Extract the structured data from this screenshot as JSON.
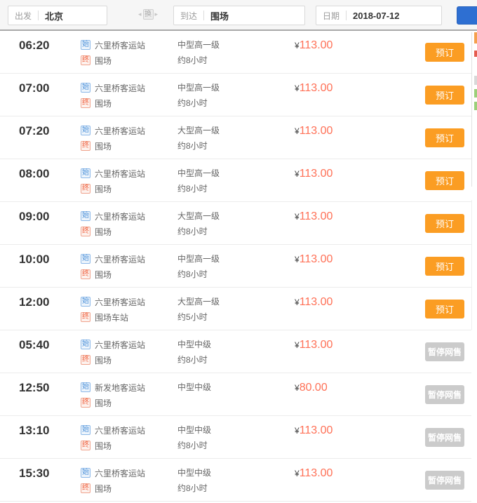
{
  "search_bar": {
    "from_label": "出发",
    "from_value": "北京",
    "swap_label": "换",
    "to_label": "到达",
    "to_value": "围场",
    "date_label": "日期",
    "date_value": "2018-07-12"
  },
  "badges": {
    "start": "始",
    "end": "终"
  },
  "buttons": {
    "book": "预订",
    "suspended": "暂停网售"
  },
  "currency": "¥",
  "colors": {
    "search_button_blue": "#2e6fd2",
    "book_button_orange": "#fb9d23",
    "suspended_button_gray": "#cbcbcb",
    "price_coral": "#ff7056",
    "start_badge_blue": "#4a90d9",
    "end_badge_orange": "#f0603d"
  },
  "rows": [
    {
      "time": "06:20",
      "from": "六里桥客运站",
      "to": "围场",
      "type": "中型高一级",
      "duration": "约8小时",
      "price": "113.00",
      "bookable": true
    },
    {
      "time": "07:00",
      "from": "六里桥客运站",
      "to": "围场",
      "type": "中型高一级",
      "duration": "约8小时",
      "price": "113.00",
      "bookable": true
    },
    {
      "time": "07:20",
      "from": "六里桥客运站",
      "to": "围场",
      "type": "大型高一级",
      "duration": "约8小时",
      "price": "113.00",
      "bookable": true
    },
    {
      "time": "08:00",
      "from": "六里桥客运站",
      "to": "围场",
      "type": "中型高一级",
      "duration": "约8小时",
      "price": "113.00",
      "bookable": true
    },
    {
      "time": "09:00",
      "from": "六里桥客运站",
      "to": "围场",
      "type": "大型高一级",
      "duration": "约8小时",
      "price": "113.00",
      "bookable": true
    },
    {
      "time": "10:00",
      "from": "六里桥客运站",
      "to": "围场",
      "type": "中型高一级",
      "duration": "约8小时",
      "price": "113.00",
      "bookable": true
    },
    {
      "time": "12:00",
      "from": "六里桥客运站",
      "to": "围场车站",
      "type": "大型高一级",
      "duration": "约5小时",
      "price": "113.00",
      "bookable": true
    },
    {
      "time": "05:40",
      "from": "六里桥客运站",
      "to": "围场",
      "type": "中型中级",
      "duration": "约8小时",
      "price": "113.00",
      "bookable": false
    },
    {
      "time": "12:50",
      "from": "新发地客运站",
      "to": "围场",
      "type": "中型中级",
      "duration": "",
      "price": "80.00",
      "bookable": false
    },
    {
      "time": "13:10",
      "from": "六里桥客运站",
      "to": "围场",
      "type": "中型中级",
      "duration": "约8小时",
      "price": "113.00",
      "bookable": false
    },
    {
      "time": "15:30",
      "from": "六里桥客运站",
      "to": "围场",
      "type": "中型中级",
      "duration": "约8小时",
      "price": "113.00",
      "bookable": false
    }
  ]
}
